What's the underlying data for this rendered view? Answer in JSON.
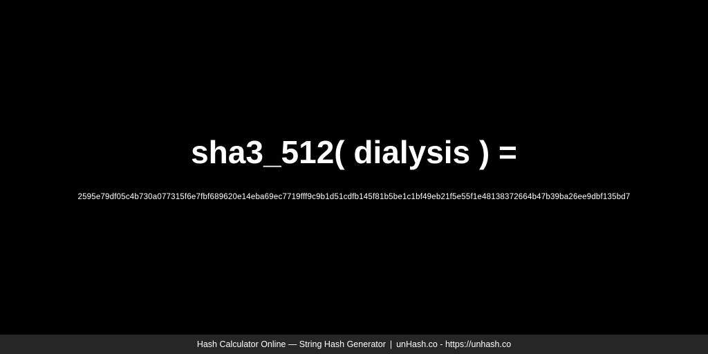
{
  "colors": {
    "background": "#000000",
    "text": "#ffffff",
    "footer_bg": "#262626"
  },
  "main": {
    "heading": "sha3_512( dialysis ) =",
    "heading_fontsize": 46,
    "heading_fontweight": "bold",
    "hash": "2595e79df05c4b730a077315f6e7fbf689620e14eba69ec7719fff9c9b1d51cdfb145f81b5be1c1bf49eb21f5e55f1e48138372664b47b39ba26ee9dbf135bd7",
    "hash_fontsize": 11.5
  },
  "footer": {
    "part1": "Hash Calculator Online — String Hash Generator",
    "separator": "|",
    "part2": "unHash.co - https://unhash.co",
    "fontsize": 12.5
  }
}
